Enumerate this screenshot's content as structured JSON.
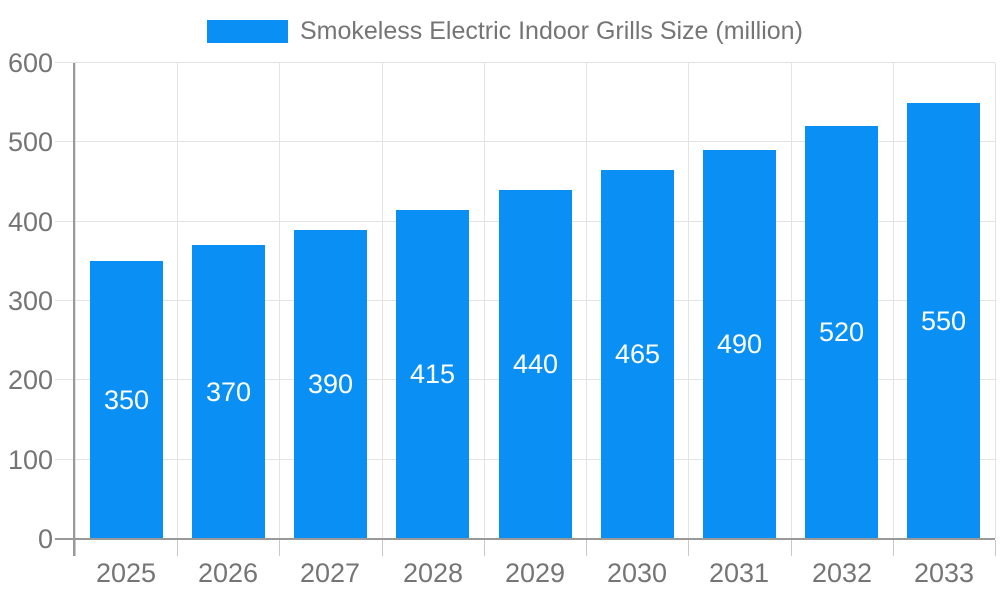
{
  "chart_data": {
    "type": "bar",
    "title": "Smokeless Electric Indoor Grills Size (million)",
    "categories": [
      "2025",
      "2026",
      "2027",
      "2028",
      "2029",
      "2030",
      "2031",
      "2032",
      "2033"
    ],
    "series": [
      {
        "name": "Smokeless Electric Indoor Grills Size (million)",
        "values": [
          350,
          370,
          390,
          415,
          440,
          465,
          490,
          520,
          550
        ]
      }
    ],
    "bar_value_labels": [
      "350",
      "370",
      "390",
      "415",
      "440",
      "465",
      "490",
      "520",
      "550"
    ],
    "xlabel": "",
    "ylabel": "",
    "ylim": [
      0,
      600
    ],
    "y_ticks": [
      0,
      100,
      200,
      300,
      400,
      500,
      600
    ],
    "grid": "both",
    "legend_position": "top",
    "bar_labels_visible": true,
    "colors": {
      "bar": "#0a90f5",
      "bar_label_text": "#ffffff",
      "tick_label": "#757575",
      "legend_text": "#757575",
      "axis_line": "#999999",
      "gridline": "#e3e3e3",
      "tick_mark": "#c9c9c9",
      "background": "#ffffff"
    }
  }
}
